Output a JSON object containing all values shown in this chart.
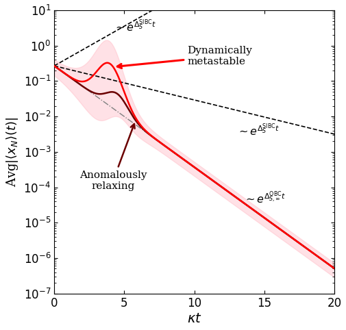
{
  "xlim": [
    0,
    20
  ],
  "ylabel_text": "Avg$|\\langle x_N\\rangle(t)|$",
  "xlabel_text": "$\\kappa t$",
  "xlabel_fontsize": 14,
  "ylabel_fontsize": 13,
  "tick_fontsize": 12,
  "background_color": "#ffffff",
  "line_color_dark": "#6B0000",
  "line_color_bright": "#FF0000",
  "fill_color": "#FFB6C1",
  "fill_alpha": 0.4,
  "annotation_dynamically": "Dynamically\nmetastable",
  "annotation_anomalously": "Anomalously\nrelaxing",
  "label_sibc_upper": "$\\sim e^{\\Delta_S^{\\mathrm{SIBC}}t}$",
  "label_sibc_lower": "$\\sim e^{\\Delta_S^{\\mathrm{SIBC}}t}$",
  "label_obc": "$\\sim e^{\\Delta_{S,\\infty}^{\\mathrm{OBC}}t}$"
}
